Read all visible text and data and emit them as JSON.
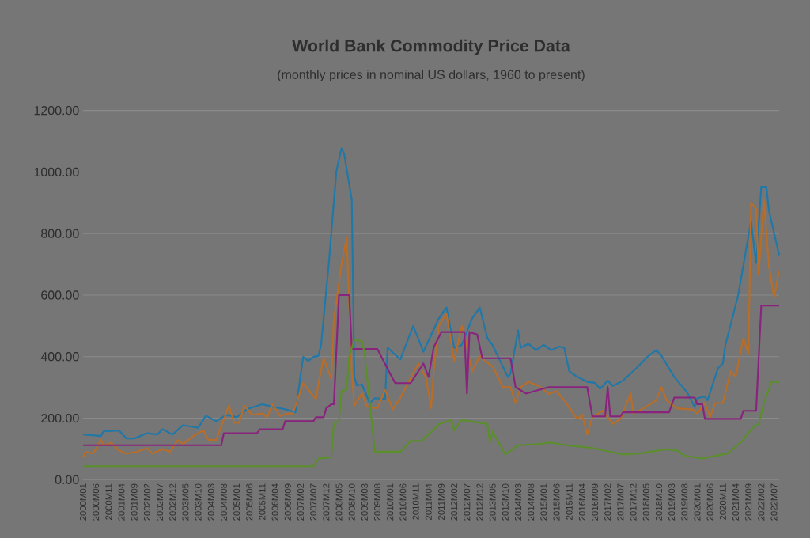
{
  "chart_data": {
    "type": "line",
    "title": "World Bank Commodity Price Data",
    "subtitle": "(monthly prices in nominal US dollars, 1960 to present)",
    "grid": "y",
    "xlim": [
      "2000-01",
      "2022-09"
    ],
    "xticks": [
      {
        "value": "2000-01",
        "label": "2000M01"
      },
      {
        "value": "2000-06",
        "label": "2000M06"
      },
      {
        "value": "2000-11",
        "label": "2000M11"
      },
      {
        "value": "2001-04",
        "label": "2001M04"
      },
      {
        "value": "2001-09",
        "label": "2001M09"
      },
      {
        "value": "2002-02",
        "label": "2002M02"
      },
      {
        "value": "2002-07",
        "label": "2002M07"
      },
      {
        "value": "2002-12",
        "label": "2002M12"
      },
      {
        "value": "2003-05",
        "label": "2003M05"
      },
      {
        "value": "2003-10",
        "label": "2003M10"
      },
      {
        "value": "2004-03",
        "label": "2004M03"
      },
      {
        "value": "2004-08",
        "label": "2004M08"
      },
      {
        "value": "2005-01",
        "label": "2005M01"
      },
      {
        "value": "2005-06",
        "label": "2005M06"
      },
      {
        "value": "2005-11",
        "label": "2005M11"
      },
      {
        "value": "2006-04",
        "label": "2006M04"
      },
      {
        "value": "2006-09",
        "label": "2006M09"
      },
      {
        "value": "2007-02",
        "label": "2007M02"
      },
      {
        "value": "2007-07",
        "label": "2007M07"
      },
      {
        "value": "2007-12",
        "label": "2007M12"
      },
      {
        "value": "2008-05",
        "label": "2008M05"
      },
      {
        "value": "2008-10",
        "label": "2008M10"
      },
      {
        "value": "2009-03",
        "label": "2009M03"
      },
      {
        "value": "2009-08",
        "label": "2009M08"
      },
      {
        "value": "2010-01",
        "label": "2010M01"
      },
      {
        "value": "2010-06",
        "label": "2010M06"
      },
      {
        "value": "2010-11",
        "label": "2010M11"
      },
      {
        "value": "2011-04",
        "label": "2011M04"
      },
      {
        "value": "2011-09",
        "label": "2011M09"
      },
      {
        "value": "2012-02",
        "label": "2012M02"
      },
      {
        "value": "2012-07",
        "label": "2012M07"
      },
      {
        "value": "2012-12",
        "label": "2012M12"
      },
      {
        "value": "2013-05",
        "label": "2013M05"
      },
      {
        "value": "2013-10",
        "label": "2013M10"
      },
      {
        "value": "2014-03",
        "label": "2014M03"
      },
      {
        "value": "2014-08",
        "label": "2014M08"
      },
      {
        "value": "2015-01",
        "label": "2015M01"
      },
      {
        "value": "2015-06",
        "label": "2015M06"
      },
      {
        "value": "2015-11",
        "label": "2015M11"
      },
      {
        "value": "2016-04",
        "label": "2016M04"
      },
      {
        "value": "2016-09",
        "label": "2016M09"
      },
      {
        "value": "2017-02",
        "label": "2017M02"
      },
      {
        "value": "2017-07",
        "label": "2017M07"
      },
      {
        "value": "2017-12",
        "label": "2017M12"
      },
      {
        "value": "2018-05",
        "label": "2018M05"
      },
      {
        "value": "2018-10",
        "label": "2018M10"
      },
      {
        "value": "2019-03",
        "label": "2019M03"
      },
      {
        "value": "2019-08",
        "label": "2019M08"
      },
      {
        "value": "2020-01",
        "label": "2020M01"
      },
      {
        "value": "2020-06",
        "label": "2020M06"
      },
      {
        "value": "2020-11",
        "label": "2020M11"
      },
      {
        "value": "2021-04",
        "label": "2021M04"
      },
      {
        "value": "2021-09",
        "label": "2021M09"
      },
      {
        "value": "2022-02",
        "label": "2022M02"
      },
      {
        "value": "2022-07",
        "label": "2022M07"
      }
    ],
    "ylim": [
      0,
      1200
    ],
    "yticks": [
      {
        "value": 0,
        "label": "0.00"
      },
      {
        "value": 200,
        "label": "200.00"
      },
      {
        "value": 400,
        "label": "400.00"
      },
      {
        "value": 600,
        "label": "600.00"
      },
      {
        "value": 800,
        "label": "800.00"
      },
      {
        "value": 1000,
        "label": "1000.00"
      },
      {
        "value": 1200,
        "label": "1200.00"
      }
    ],
    "series": [
      {
        "color": "#1f78a8",
        "x": [
          "2000-01",
          "2000-08",
          "2000-09",
          "2001-03",
          "2001-06",
          "2001-09",
          "2002-02",
          "2002-06",
          "2002-08",
          "2002-12",
          "2003-04",
          "2003-07",
          "2003-10",
          "2004-01",
          "2004-05",
          "2004-09",
          "2005-01",
          "2005-05",
          "2005-11",
          "2006-03",
          "2006-08",
          "2006-12",
          "2007-03",
          "2007-05",
          "2007-07",
          "2007-09",
          "2007-10",
          "2008-01",
          "2008-04",
          "2008-06",
          "2008-07",
          "2008-10",
          "2008-11",
          "2008-12",
          "2009-02",
          "2009-05",
          "2009-07",
          "2009-11",
          "2009-12",
          "2010-05",
          "2010-10",
          "2011-02",
          "2011-08",
          "2011-11",
          "2012-02",
          "2012-05",
          "2012-09",
          "2012-12",
          "2013-03",
          "2013-05",
          "2013-07",
          "2013-11",
          "2013-12",
          "2014-03",
          "2014-04",
          "2014-07",
          "2014-10",
          "2015-01",
          "2015-04",
          "2015-07",
          "2015-09",
          "2015-11",
          "2016-02",
          "2016-06",
          "2016-09",
          "2016-11",
          "2017-02",
          "2017-04",
          "2017-08",
          "2018-01",
          "2018-06",
          "2018-09",
          "2018-11",
          "2019-04",
          "2019-09",
          "2019-12",
          "2020-01",
          "2020-04",
          "2020-05",
          "2020-08",
          "2020-09",
          "2020-11",
          "2020-12",
          "2021-05",
          "2021-10",
          "2021-12",
          "2022-02",
          "2022-04",
          "2022-05",
          "2022-09"
        ],
        "values": [
          147,
          142,
          157,
          160,
          134,
          134,
          151,
          147,
          164,
          147,
          177,
          173,
          169,
          208,
          190,
          211,
          203,
          229,
          245,
          237,
          229,
          219,
          399,
          386,
          399,
          403,
          438,
          700,
          1003,
          1077,
          1060,
          910,
          334,
          306,
          310,
          249,
          265,
          262,
          429,
          391,
          500,
          416,
          524,
          560,
          429,
          438,
          524,
          560,
          460,
          438,
          403,
          334,
          344,
          486,
          429,
          442,
          421,
          438,
          421,
          433,
          429,
          352,
          335,
          318,
          315,
          296,
          322,
          305,
          322,
          361,
          403,
          421,
          403,
          334,
          284,
          236,
          265,
          270,
          258,
          334,
          361,
          378,
          438,
          600,
          840,
          704,
          952,
          952,
          875,
          730
        ]
      },
      {
        "color": "#b86d28",
        "x": [
          "2000-01",
          "2000-02",
          "2000-05",
          "2000-08",
          "2000-09",
          "2000-12",
          "2001-03",
          "2001-06",
          "2001-10",
          "2002-02",
          "2002-04",
          "2002-08",
          "2002-11",
          "2003-02",
          "2003-04",
          "2003-09",
          "2003-12",
          "2004-02",
          "2004-05",
          "2004-10",
          "2004-12",
          "2005-02",
          "2005-04",
          "2005-07",
          "2005-11",
          "2006-01",
          "2006-03",
          "2006-06",
          "2006-09",
          "2006-11",
          "2007-03",
          "2007-05",
          "2007-08",
          "2007-09",
          "2007-11",
          "2008-02",
          "2008-03",
          "2008-06",
          "2008-08",
          "2008-10",
          "2008-11",
          "2009-02",
          "2009-04",
          "2009-08",
          "2009-11",
          "2010-02",
          "2010-05",
          "2010-12",
          "2011-03",
          "2011-05",
          "2011-06",
          "2011-08",
          "2011-11",
          "2012-02",
          "2012-05",
          "2012-06",
          "2012-09",
          "2012-12",
          "2013-02",
          "2013-05",
          "2013-09",
          "2013-12",
          "2014-02",
          "2014-04",
          "2014-07",
          "2014-11",
          "2015-03",
          "2015-06",
          "2015-09",
          "2016-02",
          "2016-04",
          "2016-06",
          "2016-08",
          "2016-12",
          "2017-04",
          "2017-07",
          "2017-11",
          "2017-12",
          "2018-04",
          "2018-09",
          "2018-11",
          "2019-01",
          "2019-05",
          "2019-11",
          "2020-01",
          "2020-04",
          "2020-06",
          "2020-08",
          "2020-11",
          "2021-02",
          "2021-04",
          "2021-07",
          "2021-09",
          "2021-10",
          "2021-12",
          "2022-01",
          "2022-03",
          "2022-05",
          "2022-07",
          "2022-09"
        ],
        "values": [
          74,
          91,
          85,
          129,
          112,
          120,
          95,
          85,
          91,
          103,
          85,
          99,
          91,
          129,
          116,
          147,
          160,
          129,
          129,
          241,
          185,
          185,
          241,
          211,
          215,
          203,
          245,
          207,
          215,
          215,
          314,
          292,
          262,
          314,
          395,
          327,
          520,
          700,
          785,
          352,
          241,
          280,
          237,
          232,
          292,
          228,
          267,
          378,
          330,
          232,
          352,
          500,
          540,
          386,
          500,
          470,
          352,
          403,
          386,
          369,
          301,
          301,
          249,
          301,
          318,
          305,
          279,
          288,
          258,
          198,
          211,
          147,
          203,
          224,
          181,
          198,
          280,
          215,
          232,
          258,
          301,
          258,
          232,
          228,
          215,
          249,
          203,
          249,
          249,
          352,
          335,
          460,
          408,
          900,
          880,
          669,
          910,
          695,
          592,
          680
        ]
      },
      {
        "color": "#8a237d",
        "x": [
          "2000-01",
          "2004-07",
          "2004-08",
          "2005-09",
          "2005-10",
          "2006-07",
          "2006-08",
          "2007-07",
          "2007-08",
          "2007-11",
          "2007-12",
          "2008-02",
          "2008-03",
          "2008-05",
          "2008-09",
          "2008-10",
          "2009-08",
          "2010-01",
          "2010-03",
          "2010-09",
          "2011-02",
          "2011-04",
          "2011-06",
          "2011-09",
          "2012-06",
          "2012-07",
          "2012-08",
          "2012-11",
          "2013-01",
          "2013-12",
          "2014-02",
          "2014-06",
          "2015-03",
          "2016-06",
          "2016-08",
          "2017-01",
          "2017-02",
          "2017-03",
          "2017-07",
          "2017-08",
          "2019-02",
          "2019-04",
          "2019-12",
          "2020-01",
          "2020-03",
          "2020-04",
          "2021-06",
          "2021-07",
          "2021-12",
          "2022-02",
          "2022-09"
        ],
        "values": [
          112,
          112,
          151,
          151,
          164,
          164,
          190,
          190,
          203,
          203,
          232,
          245,
          245,
          600,
          600,
          425,
          425,
          344,
          314,
          314,
          378,
          334,
          430,
          480,
          480,
          280,
          480,
          472,
          395,
          395,
          301,
          280,
          301,
          301,
          206,
          206,
          301,
          206,
          206,
          219,
          219,
          267,
          267,
          245,
          245,
          198,
          198,
          224,
          224,
          566,
          566
        ]
      },
      {
        "color": "#5a8f2a",
        "x": [
          "2000-01",
          "2007-07",
          "2007-09",
          "2008-02",
          "2008-03",
          "2008-05",
          "2008-06",
          "2008-08",
          "2008-09",
          "2008-11",
          "2009-02",
          "2009-03",
          "2009-07",
          "2010-05",
          "2010-09",
          "2011-01",
          "2011-04",
          "2011-08",
          "2012-01",
          "2012-02",
          "2012-05",
          "2013-03",
          "2013-04",
          "2013-05",
          "2013-10",
          "2014-03",
          "2014-11",
          "2015-03",
          "2015-10",
          "2016-08",
          "2017-08",
          "2018-03",
          "2019-01",
          "2019-05",
          "2019-08",
          "2020-03",
          "2021-01",
          "2021-06",
          "2021-11",
          "2022-01",
          "2022-03",
          "2022-06",
          "2022-09"
        ],
        "values": [
          44,
          44,
          69,
          73,
          181,
          190,
          288,
          293,
          400,
          455,
          450,
          412,
          91,
          91,
          126,
          126,
          147,
          181,
          194,
          160,
          194,
          181,
          121,
          157,
          82,
          112,
          116,
          121,
          112,
          103,
          82,
          86,
          99,
          95,
          78,
          69,
          86,
          121,
          172,
          181,
          249,
          318,
          318
        ]
      }
    ]
  }
}
